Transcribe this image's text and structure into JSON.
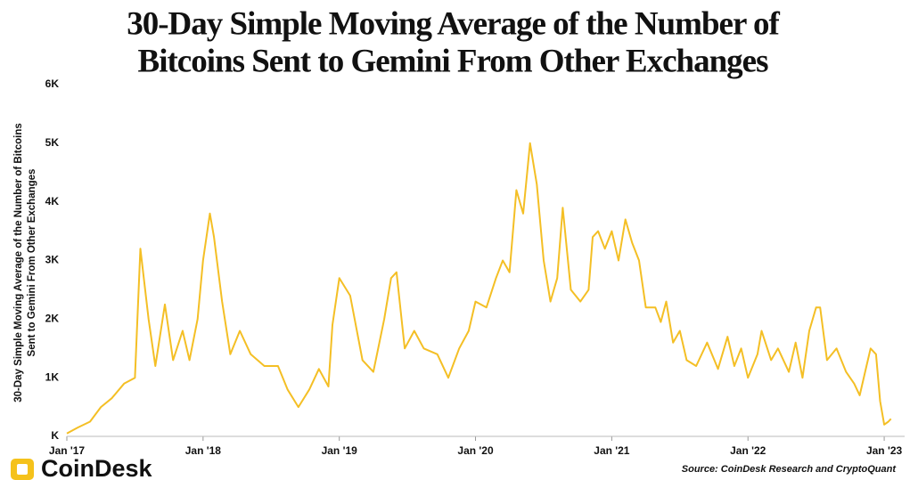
{
  "chart_data": {
    "type": "line",
    "title": [
      "30-Day Simple Moving Average of the Number of",
      "Bitcoins  Sent to Gemini From Other Exchanges"
    ],
    "ylabel": [
      "30-Day Simple Moving Average of the Number of Bitcoins",
      "Sent to Gemini From Other Exchanges"
    ],
    "source": "Source: CoinDesk Research and CryptoQuant",
    "logo": "CoinDesk",
    "color": "#f4bf25",
    "x": [
      2017.0,
      2017.08,
      2017.17,
      2017.25,
      2017.33,
      2017.42,
      2017.5,
      2017.54,
      2017.6,
      2017.65,
      2017.72,
      2017.78,
      2017.85,
      2017.9,
      2017.96,
      2018.0,
      2018.05,
      2018.08,
      2018.14,
      2018.2,
      2018.27,
      2018.35,
      2018.45,
      2018.55,
      2018.62,
      2018.7,
      2018.78,
      2018.85,
      2018.92,
      2018.95,
      2019.0,
      2019.08,
      2019.17,
      2019.25,
      2019.33,
      2019.38,
      2019.42,
      2019.48,
      2019.55,
      2019.62,
      2019.72,
      2019.8,
      2019.88,
      2019.95,
      2020.0,
      2020.08,
      2020.15,
      2020.2,
      2020.25,
      2020.3,
      2020.35,
      2020.4,
      2020.45,
      2020.5,
      2020.55,
      2020.6,
      2020.64,
      2020.7,
      2020.77,
      2020.83,
      2020.86,
      2020.9,
      2020.95,
      2021.0,
      2021.05,
      2021.1,
      2021.15,
      2021.2,
      2021.25,
      2021.32,
      2021.36,
      2021.4,
      2021.45,
      2021.5,
      2021.55,
      2021.62,
      2021.7,
      2021.78,
      2021.85,
      2021.9,
      2021.95,
      2022.0,
      2022.07,
      2022.1,
      2022.17,
      2022.22,
      2022.3,
      2022.35,
      2022.4,
      2022.45,
      2022.5,
      2022.53,
      2022.58,
      2022.65,
      2022.72,
      2022.78,
      2022.82,
      2022.87,
      2022.9,
      2022.94,
      2022.97,
      2023.0,
      2023.03,
      2023.05
    ],
    "values": [
      50,
      150,
      250,
      500,
      650,
      900,
      1000,
      3200,
      2000,
      1200,
      2250,
      1300,
      1800,
      1300,
      2000,
      3000,
      3800,
      3400,
      2300,
      1400,
      1800,
      1400,
      1200,
      1200,
      800,
      500,
      800,
      1150,
      850,
      1900,
      2700,
      2400,
      1300,
      1100,
      2000,
      2700,
      2800,
      1500,
      1800,
      1500,
      1400,
      1000,
      1500,
      1800,
      2300,
      2200,
      2700,
      3000,
      2800,
      4200,
      3800,
      5000,
      4300,
      3000,
      2300,
      2700,
      3900,
      2500,
      2300,
      2500,
      3400,
      3500,
      3200,
      3500,
      3000,
      3700,
      3300,
      3000,
      2200,
      2200,
      1950,
      2300,
      1600,
      1800,
      1300,
      1200,
      1600,
      1150,
      1700,
      1200,
      1500,
      1000,
      1400,
      1800,
      1300,
      1500,
      1100,
      1600,
      1000,
      1800,
      2200,
      2200,
      1300,
      1500,
      1100,
      900,
      700,
      1200,
      1500,
      1400,
      600,
      200,
      250,
      300
    ],
    "xlim": [
      2017.0,
      2023.15
    ],
    "xticks": [
      {
        "value": 2017,
        "label": "Jan '17"
      },
      {
        "value": 2018,
        "label": "Jan '18"
      },
      {
        "value": 2019,
        "label": "Jan '19"
      },
      {
        "value": 2020,
        "label": "Jan '20"
      },
      {
        "value": 2021,
        "label": "Jan '21"
      },
      {
        "value": 2022,
        "label": "Jan '22"
      },
      {
        "value": 2023,
        "label": "Jan '23"
      }
    ],
    "ylim": [
      0,
      6000
    ],
    "yticks": [
      {
        "value": 0,
        "label": "K"
      },
      {
        "value": 1000,
        "label": "1K"
      },
      {
        "value": 2000,
        "label": "2K"
      },
      {
        "value": 3000,
        "label": "3K"
      },
      {
        "value": 4000,
        "label": "4K"
      },
      {
        "value": 5000,
        "label": "5K"
      },
      {
        "value": 6000,
        "label": "6K"
      }
    ]
  }
}
